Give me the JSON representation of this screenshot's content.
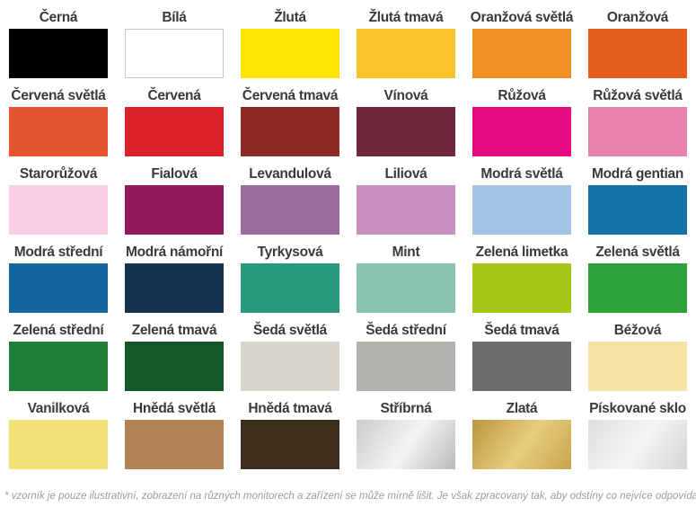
{
  "page": {
    "background": "#ffffff",
    "label_color": "#3a3a3a",
    "footnote": "* vzorník je pouze ilustrativní, zobrazení na různých monitorech a zařízení se může mírně lišit. Je však zpracovaný tak, aby odstíny co nejvíce odpovídaly."
  },
  "palette": {
    "columns": 6,
    "rows": 6,
    "swatches": [
      {
        "name": "Černá",
        "color": "#000000"
      },
      {
        "name": "Bílá",
        "color": "#ffffff",
        "border": "#c8c8c8"
      },
      {
        "name": "Žlutá",
        "color": "#fce500"
      },
      {
        "name": "Žlutá tmavá",
        "color": "#fac32b"
      },
      {
        "name": "Oranžová světlá",
        "color": "#f09022"
      },
      {
        "name": "Oranžová",
        "color": "#e45c1e"
      },
      {
        "name": "Červená světlá",
        "color": "#e65330"
      },
      {
        "name": "Červená",
        "color": "#da2127"
      },
      {
        "name": "Červená tmavá",
        "color": "#8e2a24"
      },
      {
        "name": "Vínová",
        "color": "#6f2639"
      },
      {
        "name": "Růžová",
        "color": "#e40a80"
      },
      {
        "name": "Růžová světlá",
        "color": "#e981ad"
      },
      {
        "name": "Starorůžová",
        "color": "#f6cde2"
      },
      {
        "name": "Fialová",
        "color": "#94185c"
      },
      {
        "name": "Levandulová",
        "color": "#9b6d9e"
      },
      {
        "name": "Liliová",
        "color": "#c78fc0"
      },
      {
        "name": "Modrá světlá",
        "color": "#a2c4e6"
      },
      {
        "name": "Modrá gentian",
        "color": "#1173a6"
      },
      {
        "name": "Modrá střední",
        "color": "#14679e"
      },
      {
        "name": "Modrá námořní",
        "color": "#143450"
      },
      {
        "name": "Tyrkysová",
        "color": "#27997f"
      },
      {
        "name": "Mint",
        "color": "#89c5ae"
      },
      {
        "name": "Zelená limetka",
        "color": "#a5c716"
      },
      {
        "name": "Zelená světlá",
        "color": "#2ba338"
      },
      {
        "name": "Zelená střední",
        "color": "#1f7e38"
      },
      {
        "name": "Zelená tmavá",
        "color": "#155829"
      },
      {
        "name": "Šedá světlá",
        "color": "#d7d4cc"
      },
      {
        "name": "Šedá střední",
        "color": "#b4b2ac"
      },
      {
        "name": "Šedá tmavá",
        "color": "#6c6c6c"
      },
      {
        "name": "Béžová",
        "color": "#f8e3a6"
      },
      {
        "name": "Vanilková",
        "color": "#f3e277"
      },
      {
        "name": "Hnědá světlá",
        "color": "#b28354"
      },
      {
        "name": "Hnědá tmavá",
        "color": "#3e2f1d"
      },
      {
        "name": "Stříbrná",
        "gradient": [
          "#cbcbcb",
          "#f4f4f4",
          "#b9b9b9"
        ]
      },
      {
        "name": "Zlatá",
        "gradient": [
          "#bb963c",
          "#e7cd7e",
          "#c9a44c"
        ]
      },
      {
        "name": "Pískované sklo",
        "gradient": [
          "#dedede",
          "#f5f5f5",
          "#d4d4d4"
        ]
      }
    ]
  }
}
